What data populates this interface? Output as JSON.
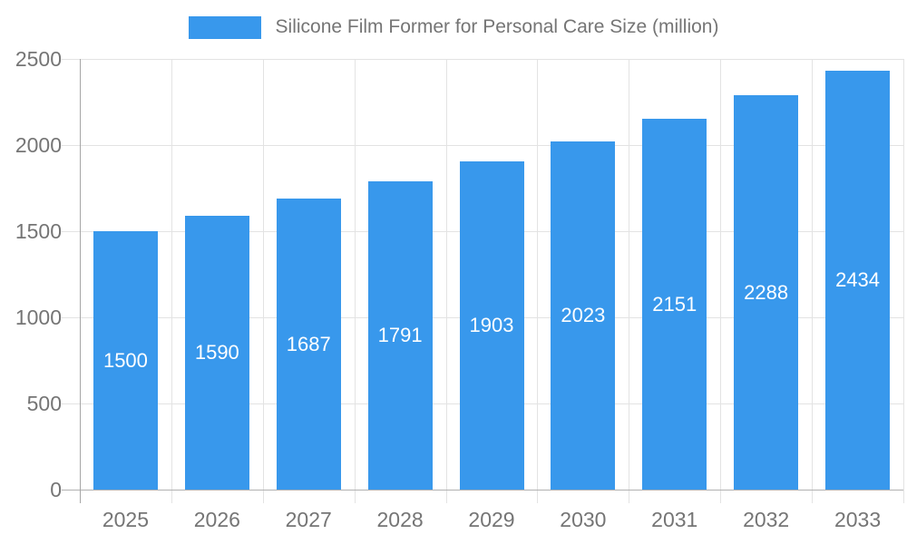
{
  "colors": {
    "bar": "#3898ec",
    "grid": "#e3e3e3",
    "axis": "#a6a6a6",
    "label_gray": "#757575",
    "bar_label": "#ffffff",
    "background": "#ffffff"
  },
  "legend": {
    "swatch_color": "#3898ec",
    "label": "Silicone Film Former for Personal Care Size (million)"
  },
  "chart_data": {
    "type": "bar",
    "title": "Silicone Film Former for Personal Care Size (million)",
    "categories": [
      "2025",
      "2026",
      "2027",
      "2028",
      "2029",
      "2030",
      "2031",
      "2032",
      "2033"
    ],
    "values": [
      1500,
      1590,
      1687,
      1791,
      1903,
      2023,
      2151,
      2288,
      2434
    ],
    "series_name": "Silicone Film Former for Personal Care Size (million)",
    "xlabel": "",
    "ylabel": "",
    "ylim": [
      0,
      2500
    ],
    "y_ticks": [
      0,
      500,
      1000,
      1500,
      2000,
      2500
    ],
    "grid": true,
    "legend_position": "top-center",
    "bar_labels_visible": true,
    "bar_label_position": "center"
  }
}
